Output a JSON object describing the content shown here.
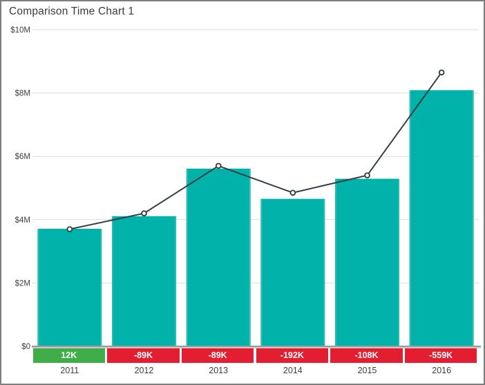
{
  "chart_data": {
    "type": "combo",
    "title": "Comparison Time Chart 1",
    "categories": [
      "2011",
      "2012",
      "2013",
      "2014",
      "2015",
      "2016"
    ],
    "series": [
      {
        "name": "current-period-bars",
        "type": "bar",
        "values_millions_usd": [
          3.712,
          4.111,
          5.611,
          4.658,
          5.292,
          8.091
        ]
      },
      {
        "name": "comparison-period-line",
        "type": "line",
        "values_millions_usd": [
          3.7,
          4.2,
          5.7,
          4.85,
          5.4,
          8.65
        ]
      }
    ],
    "y_ticks": [
      "$0",
      "$2M",
      "$4M",
      "$6M",
      "$8M",
      "$10M"
    ],
    "y_tick_values_millions": [
      0,
      2,
      4,
      6,
      8,
      10
    ],
    "ylim_millions": [
      0,
      10
    ],
    "grid": "horizontal",
    "legend": "none",
    "badges": [
      {
        "year": "2011",
        "label": "12K",
        "color": "#3fae49"
      },
      {
        "year": "2012",
        "label": "-89K",
        "color": "#e41e31"
      },
      {
        "year": "2013",
        "label": "-89K",
        "color": "#e41e31"
      },
      {
        "year": "2014",
        "label": "-192K",
        "color": "#e41e31"
      },
      {
        "year": "2015",
        "label": "-108K",
        "color": "#e41e31"
      },
      {
        "year": "2016",
        "label": "-559K",
        "color": "#e41e31"
      }
    ],
    "colors": {
      "bar": "#00b2a9",
      "bar_edge": "#49c5be",
      "line": "#363f47",
      "marker_fill": "#ffffff",
      "grid": "#dbdbdb",
      "axis": "#9c9c9c",
      "axis_light": "#cfcfcf",
      "tick_text": "#3f3f3f",
      "badge_positive": "#3fae49",
      "badge_negative": "#e41e31",
      "title_text": "#3a3a3a"
    }
  }
}
